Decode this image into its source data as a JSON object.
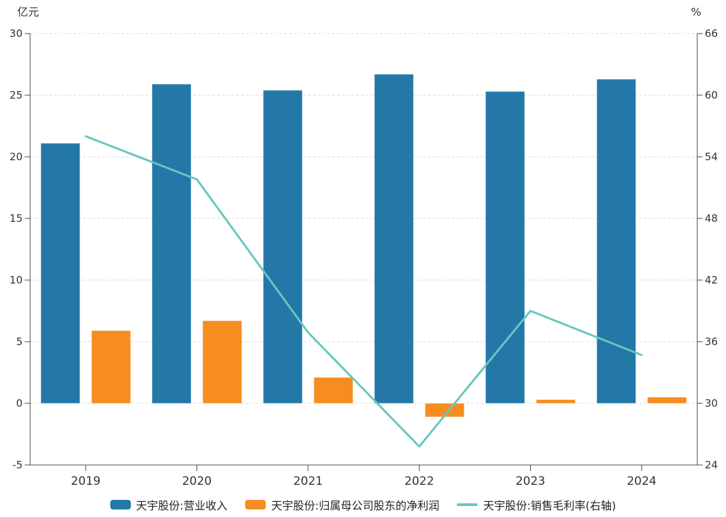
{
  "chart_data": {
    "type": "combo",
    "categories": [
      "2019",
      "2020",
      "2021",
      "2022",
      "2023",
      "2024"
    ],
    "series": [
      {
        "name": "天宇股份:营业收入",
        "type": "bar",
        "axis": "left",
        "color": "#2478A8",
        "values": [
          21.1,
          25.9,
          25.4,
          26.7,
          25.3,
          26.3
        ]
      },
      {
        "name": "天宇股份:归属母公司股东的净利润",
        "type": "bar",
        "axis": "left",
        "color": "#F78C1F",
        "values": [
          5.9,
          6.7,
          2.1,
          -1.1,
          0.3,
          0.5
        ]
      },
      {
        "name": "天宇股份:销售毛利率(右轴)",
        "type": "line",
        "axis": "right",
        "color": "#68C6C0",
        "values": [
          56.0,
          51.8,
          36.9,
          25.8,
          39.0,
          34.7
        ]
      }
    ],
    "left_axis": {
      "label": "亿元",
      "min": -5,
      "max": 30,
      "tick_step": 5
    },
    "right_axis": {
      "label": "%",
      "min": 24,
      "max": 66,
      "tick_step": 6
    },
    "grid": true,
    "legend_position": "bottom",
    "styles": {
      "axis_line_color": "#4A4A4A",
      "grid_line_color": "#DADADA",
      "tick_label_color": "#333333",
      "background": "#FFFFFF"
    }
  }
}
